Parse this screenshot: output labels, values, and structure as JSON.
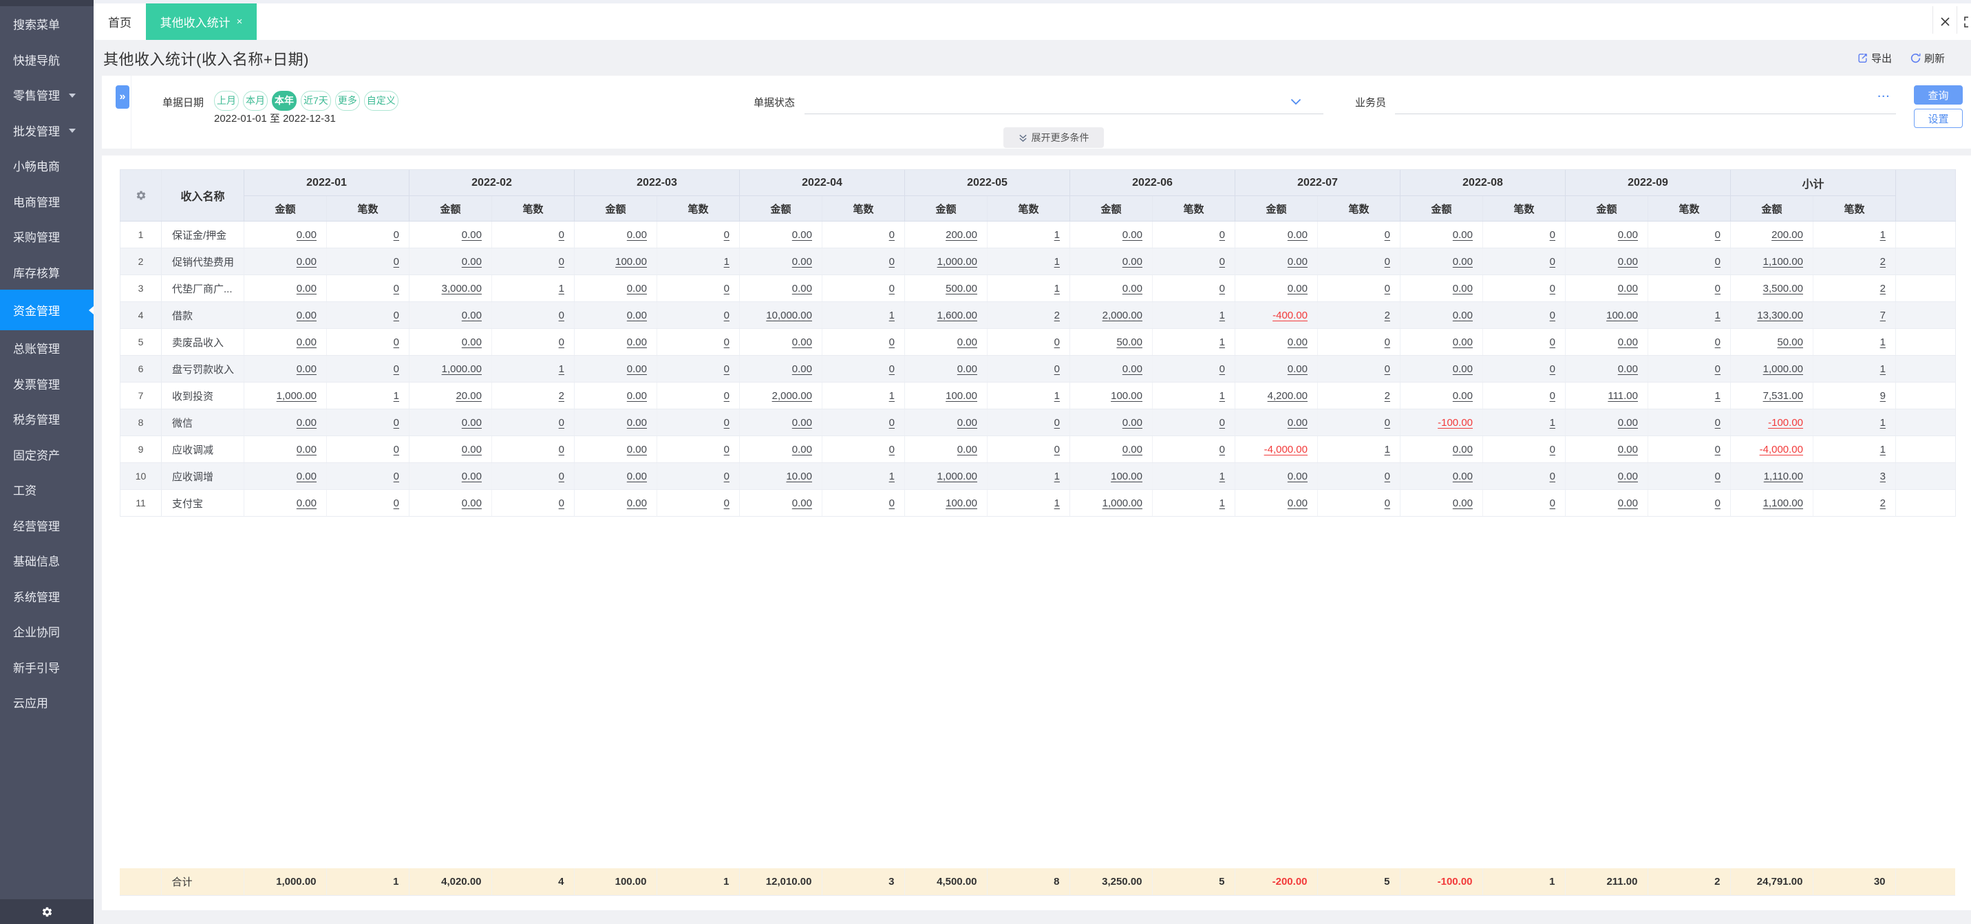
{
  "colors": {
    "sidebar_bg": "#4b5062",
    "sidebar_strip": "#3b3f4e",
    "sidebar_active": "#0d92fb",
    "tab_green": "#38cda3",
    "accent_blue": "#689ef7",
    "icon_blue": "#5b7cf1",
    "pill_green": "#3abf97",
    "table_header_bg": "#e9edf5",
    "row_stripe": "#f2f4f8",
    "totals_bg": "#fcf1d9",
    "negative_red": "#f23a3a",
    "page_bg": "#f0f1f4"
  },
  "sidebar": {
    "items": [
      {
        "label": "搜索菜单"
      },
      {
        "label": "快捷导航"
      },
      {
        "label": "零售管理",
        "caret": true
      },
      {
        "label": "批发管理",
        "caret": true
      },
      {
        "label": "小畅电商"
      },
      {
        "label": "电商管理"
      },
      {
        "label": "采购管理"
      },
      {
        "label": "库存核算"
      },
      {
        "label": "资金管理"
      },
      {
        "label": "总账管理"
      },
      {
        "label": "发票管理"
      },
      {
        "label": "税务管理"
      },
      {
        "label": "固定资产"
      },
      {
        "label": "工资"
      },
      {
        "label": "经营管理"
      },
      {
        "label": "基础信息"
      },
      {
        "label": "系统管理"
      },
      {
        "label": "企业协同"
      },
      {
        "label": "新手引导"
      },
      {
        "label": "云应用"
      }
    ],
    "active_index": 8
  },
  "tabs": {
    "home": "首页",
    "active": "其他收入统计",
    "close_icon": "×"
  },
  "window": {
    "close_icon": "✕"
  },
  "header": {
    "title": "其他收入统计(收入名称+日期)",
    "export_label": "导出",
    "refresh_label": "刷新"
  },
  "filter": {
    "collapse_icon": "»",
    "date_label": "单据日期",
    "date_pills": [
      "上月",
      "本月",
      "本年",
      "近7天",
      "更多",
      "自定义"
    ],
    "active_pill_index": 2,
    "date_range": "2022-01-01 至 2022-12-31",
    "status_label": "单据状态",
    "salesman_label": "业务员",
    "salesman_more": "...",
    "query_label": "查询",
    "settings_label": "设置",
    "expand_more_label": "展开更多条件"
  },
  "table": {
    "name_header": "收入名称",
    "amount_header": "金额",
    "count_header": "笔数",
    "months": [
      "2022-01",
      "2022-02",
      "2022-03",
      "2022-04",
      "2022-05",
      "2022-06",
      "2022-07",
      "2022-08",
      "2022-09"
    ],
    "subtotal_header": "小计",
    "rows": [
      {
        "no": "1",
        "name": "保证金/押金",
        "cells": [
          [
            "0.00",
            "0"
          ],
          [
            "0.00",
            "0"
          ],
          [
            "0.00",
            "0"
          ],
          [
            "0.00",
            "0"
          ],
          [
            "200.00",
            "1"
          ],
          [
            "0.00",
            "0"
          ],
          [
            "0.00",
            "0"
          ],
          [
            "0.00",
            "0"
          ],
          [
            "0.00",
            "0"
          ],
          [
            "200.00",
            "1"
          ]
        ]
      },
      {
        "no": "2",
        "name": "促销代垫费用",
        "cells": [
          [
            "0.00",
            "0"
          ],
          [
            "0.00",
            "0"
          ],
          [
            "100.00",
            "1"
          ],
          [
            "0.00",
            "0"
          ],
          [
            "1,000.00",
            "1"
          ],
          [
            "0.00",
            "0"
          ],
          [
            "0.00",
            "0"
          ],
          [
            "0.00",
            "0"
          ],
          [
            "0.00",
            "0"
          ],
          [
            "1,100.00",
            "2"
          ]
        ]
      },
      {
        "no": "3",
        "name": "代垫厂商广...",
        "cells": [
          [
            "0.00",
            "0"
          ],
          [
            "3,000.00",
            "1"
          ],
          [
            "0.00",
            "0"
          ],
          [
            "0.00",
            "0"
          ],
          [
            "500.00",
            "1"
          ],
          [
            "0.00",
            "0"
          ],
          [
            "0.00",
            "0"
          ],
          [
            "0.00",
            "0"
          ],
          [
            "0.00",
            "0"
          ],
          [
            "3,500.00",
            "2"
          ]
        ]
      },
      {
        "no": "4",
        "name": "借款",
        "cells": [
          [
            "0.00",
            "0"
          ],
          [
            "0.00",
            "0"
          ],
          [
            "0.00",
            "0"
          ],
          [
            "10,000.00",
            "1"
          ],
          [
            "1,600.00",
            "2"
          ],
          [
            "2,000.00",
            "1"
          ],
          [
            "-400.00",
            "2"
          ],
          [
            "0.00",
            "0"
          ],
          [
            "100.00",
            "1"
          ],
          [
            "13,300.00",
            "7"
          ]
        ]
      },
      {
        "no": "5",
        "name": "卖废品收入",
        "cells": [
          [
            "0.00",
            "0"
          ],
          [
            "0.00",
            "0"
          ],
          [
            "0.00",
            "0"
          ],
          [
            "0.00",
            "0"
          ],
          [
            "0.00",
            "0"
          ],
          [
            "50.00",
            "1"
          ],
          [
            "0.00",
            "0"
          ],
          [
            "0.00",
            "0"
          ],
          [
            "0.00",
            "0"
          ],
          [
            "50.00",
            "1"
          ]
        ]
      },
      {
        "no": "6",
        "name": "盘亏罚款收入",
        "cells": [
          [
            "0.00",
            "0"
          ],
          [
            "1,000.00",
            "1"
          ],
          [
            "0.00",
            "0"
          ],
          [
            "0.00",
            "0"
          ],
          [
            "0.00",
            "0"
          ],
          [
            "0.00",
            "0"
          ],
          [
            "0.00",
            "0"
          ],
          [
            "0.00",
            "0"
          ],
          [
            "0.00",
            "0"
          ],
          [
            "1,000.00",
            "1"
          ]
        ]
      },
      {
        "no": "7",
        "name": "收到投资",
        "cells": [
          [
            "1,000.00",
            "1"
          ],
          [
            "20.00",
            "2"
          ],
          [
            "0.00",
            "0"
          ],
          [
            "2,000.00",
            "1"
          ],
          [
            "100.00",
            "1"
          ],
          [
            "100.00",
            "1"
          ],
          [
            "4,200.00",
            "2"
          ],
          [
            "0.00",
            "0"
          ],
          [
            "111.00",
            "1"
          ],
          [
            "7,531.00",
            "9"
          ]
        ]
      },
      {
        "no": "8",
        "name": "微信",
        "cells": [
          [
            "0.00",
            "0"
          ],
          [
            "0.00",
            "0"
          ],
          [
            "0.00",
            "0"
          ],
          [
            "0.00",
            "0"
          ],
          [
            "0.00",
            "0"
          ],
          [
            "0.00",
            "0"
          ],
          [
            "0.00",
            "0"
          ],
          [
            "-100.00",
            "1"
          ],
          [
            "0.00",
            "0"
          ],
          [
            "-100.00",
            "1"
          ]
        ]
      },
      {
        "no": "9",
        "name": "应收调减",
        "cells": [
          [
            "0.00",
            "0"
          ],
          [
            "0.00",
            "0"
          ],
          [
            "0.00",
            "0"
          ],
          [
            "0.00",
            "0"
          ],
          [
            "0.00",
            "0"
          ],
          [
            "0.00",
            "0"
          ],
          [
            "-4,000.00",
            "1"
          ],
          [
            "0.00",
            "0"
          ],
          [
            "0.00",
            "0"
          ],
          [
            "-4,000.00",
            "1"
          ]
        ]
      },
      {
        "no": "10",
        "name": "应收调增",
        "cells": [
          [
            "0.00",
            "0"
          ],
          [
            "0.00",
            "0"
          ],
          [
            "0.00",
            "0"
          ],
          [
            "10.00",
            "1"
          ],
          [
            "1,000.00",
            "1"
          ],
          [
            "100.00",
            "1"
          ],
          [
            "0.00",
            "0"
          ],
          [
            "0.00",
            "0"
          ],
          [
            "0.00",
            "0"
          ],
          [
            "1,110.00",
            "3"
          ]
        ]
      },
      {
        "no": "11",
        "name": "支付宝",
        "cells": [
          [
            "0.00",
            "0"
          ],
          [
            "0.00",
            "0"
          ],
          [
            "0.00",
            "0"
          ],
          [
            "0.00",
            "0"
          ],
          [
            "100.00",
            "1"
          ],
          [
            "1,000.00",
            "1"
          ],
          [
            "0.00",
            "0"
          ],
          [
            "0.00",
            "0"
          ],
          [
            "0.00",
            "0"
          ],
          [
            "1,100.00",
            "2"
          ]
        ]
      }
    ],
    "total": {
      "label": "合计",
      "cells": [
        [
          "1,000.00",
          "1"
        ],
        [
          "4,020.00",
          "4"
        ],
        [
          "100.00",
          "1"
        ],
        [
          "12,010.00",
          "3"
        ],
        [
          "4,500.00",
          "8"
        ],
        [
          "3,250.00",
          "5"
        ],
        [
          "-200.00",
          "5"
        ],
        [
          "-100.00",
          "1"
        ],
        [
          "211.00",
          "2"
        ],
        [
          "24,791.00",
          "30"
        ]
      ]
    }
  }
}
